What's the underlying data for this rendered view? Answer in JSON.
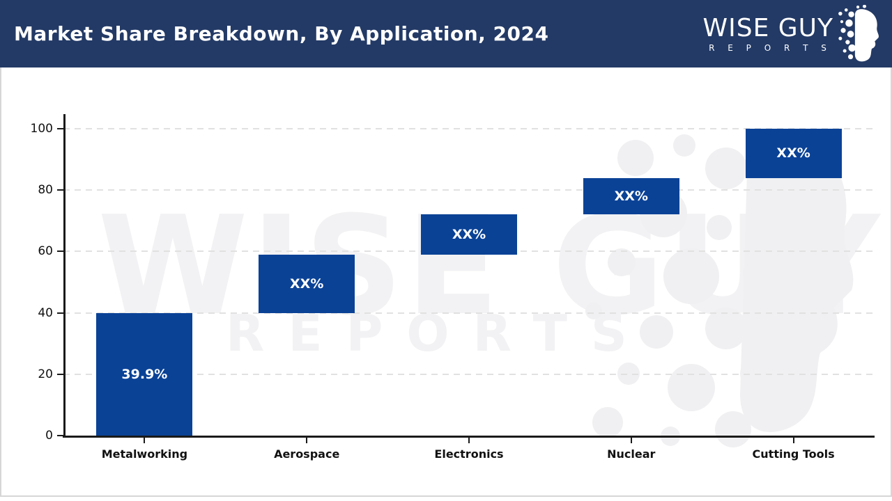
{
  "header": {
    "title": "Market Share Breakdown, By Application, 2024"
  },
  "logo": {
    "line1": "WISE GUY",
    "line2": "R E P O R T S"
  },
  "watermark": {
    "line1": "WISE GUY",
    "line2": "REPORTS"
  },
  "colors": {
    "header_bg": "#233a66",
    "bar": "#0a4296",
    "grid": "#e1e1e1",
    "axis": "#1a1a1a",
    "value_label": "#ffffff",
    "watermark": "#f2f2f4"
  },
  "chart_data": {
    "type": "bar",
    "subtype": "waterfall",
    "title": "Market Share Breakdown, By Application, 2024",
    "xlabel": "",
    "ylabel": "",
    "categories": [
      "Metalworking",
      "Aerospace",
      "Electronics",
      "Nuclear",
      "Cutting Tools"
    ],
    "segments": [
      {
        "category": "Metalworking",
        "label": "39.9%",
        "from": 0,
        "to": 39.9
      },
      {
        "category": "Aerospace",
        "label": "XX%",
        "from": 39.9,
        "to": 59
      },
      {
        "category": "Electronics",
        "label": "XX%",
        "from": 59,
        "to": 72
      },
      {
        "category": "Nuclear",
        "label": "XX%",
        "from": 72,
        "to": 84
      },
      {
        "category": "Cutting Tools",
        "label": "XX%",
        "from": 84,
        "to": 100
      }
    ],
    "values_shown": [
      "39.9%",
      "XX%",
      "XX%",
      "XX%",
      "XX%"
    ],
    "yticks": [
      0,
      20,
      40,
      60,
      80,
      100
    ],
    "ylim": [
      0,
      105
    ],
    "grid": "dashed-horizontal",
    "legend": "none",
    "unit": "%"
  }
}
